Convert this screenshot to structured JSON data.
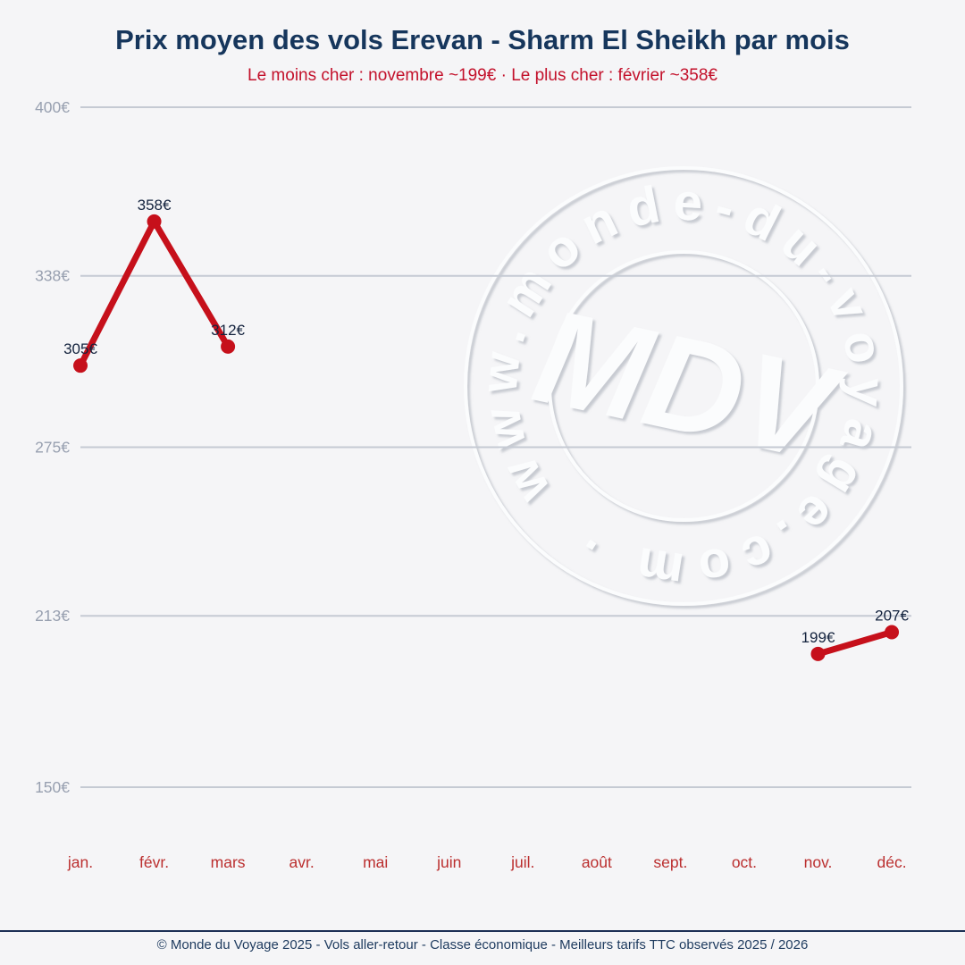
{
  "header": {
    "title": "Prix moyen des vols Erevan - Sharm El Sheikh par mois",
    "subtitle": "Le moins cher : novembre ~199€ · Le plus cher : février ~358€"
  },
  "chart_data": {
    "type": "line",
    "title": "Prix moyen des vols Erevan - Sharm El Sheikh par mois",
    "categories": [
      "jan.",
      "févr.",
      "mars",
      "avr.",
      "mai",
      "juin",
      "juil.",
      "août",
      "sept.",
      "oct.",
      "nov.",
      "déc."
    ],
    "values": [
      305,
      358,
      312,
      null,
      null,
      null,
      null,
      null,
      null,
      null,
      199,
      207
    ],
    "point_labels": [
      "305€",
      "358€",
      "312€",
      null,
      null,
      null,
      null,
      null,
      null,
      null,
      "199€",
      "207€"
    ],
    "yticks": [
      {
        "value": 400,
        "label": "400€"
      },
      {
        "value": 338,
        "label": "338€"
      },
      {
        "value": 275,
        "label": "275€"
      },
      {
        "value": 213,
        "label": "213€"
      },
      {
        "value": 150,
        "label": "150€"
      }
    ],
    "ylim": [
      150,
      400
    ],
    "xlabel": "",
    "ylabel": "",
    "grid": true,
    "legend": "none",
    "series_color": "#c6101b"
  },
  "colors": {
    "background": "#f5f5f7",
    "title": "#16365c",
    "subtitle_red": "#c3112b",
    "line_red": "#c6101b",
    "grid_line": "#c5cad3",
    "y_tick_label": "#98a0b0",
    "x_month_label": "#bb2f2f",
    "point_label": "#14233e",
    "footer_navy": "#1d3a5e"
  },
  "watermark": {
    "ring_text": "www.monde-du-voyage.com · ",
    "center_text": "MDV"
  },
  "footer": {
    "text": "© Monde du Voyage 2025 - Vols aller-retour - Classe économique - Meilleurs tarifs TTC observés 2025 / 2026"
  }
}
